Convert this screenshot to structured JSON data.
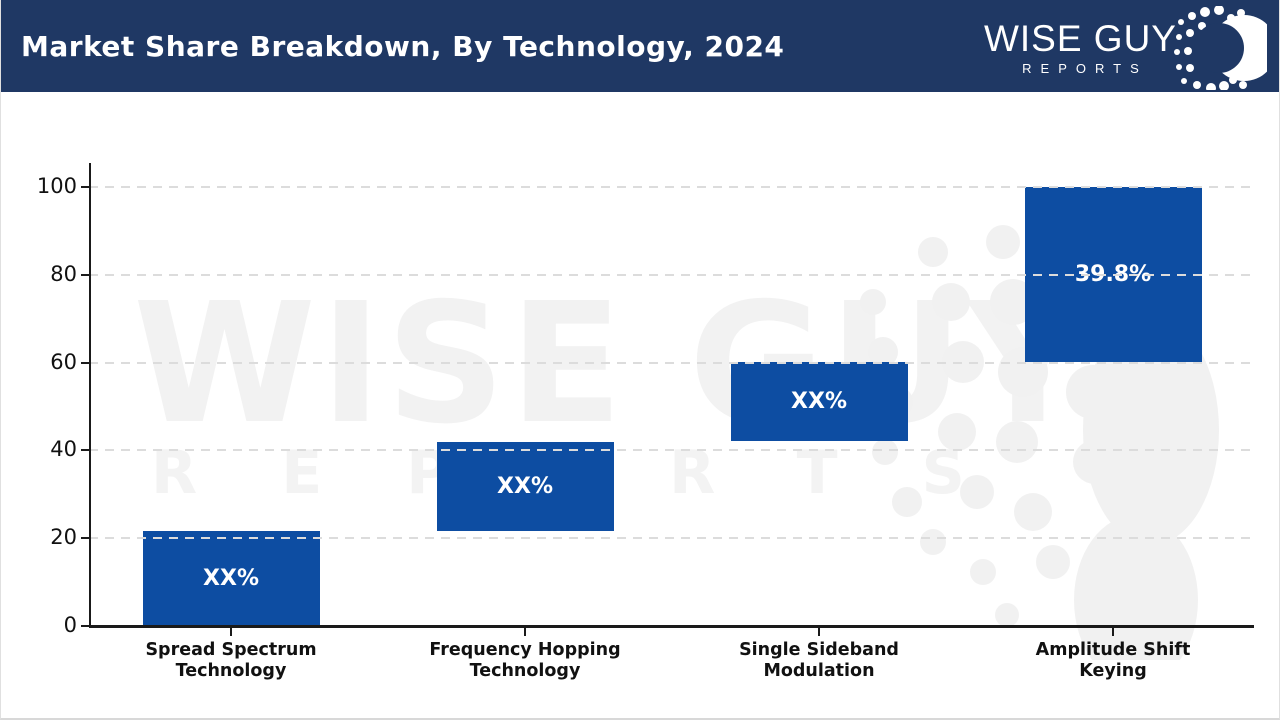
{
  "header": {
    "title": "Market Share Breakdown, By Technology, 2024",
    "bg_color": "#1f3864",
    "logo": {
      "line1": "WISE GUY",
      "line2": "REPORTS"
    }
  },
  "watermark": {
    "line1": "WISE GUY",
    "line2": "REPORTS"
  },
  "chart_data": {
    "type": "bar",
    "subtype": "waterfall-floating-bars",
    "title": "Market Share Breakdown, By Technology, 2024",
    "xlabel": "",
    "ylabel": "",
    "ylim": [
      0,
      100
    ],
    "yticks": [
      0,
      20,
      40,
      60,
      80,
      100
    ],
    "grid": "horizontal-dashed",
    "legend": "none",
    "bar_color": "#0d4da2",
    "bar_label_color": "#ffffff",
    "categories": [
      {
        "label_lines": [
          "Spread Spectrum",
          "Technology"
        ]
      },
      {
        "label_lines": [
          "Frequency Hopping",
          "Technology"
        ]
      },
      {
        "label_lines": [
          "Single Sideband",
          "Modulation"
        ]
      },
      {
        "label_lines": [
          "Amplitude Shift",
          "Keying"
        ]
      }
    ],
    "segments": [
      {
        "category": "Spread Spectrum Technology",
        "start": 0,
        "end": 21.6,
        "value": 21.6,
        "label": "XX%"
      },
      {
        "category": "Frequency Hopping Technology",
        "start": 21.6,
        "end": 41.9,
        "value": 20.3,
        "label": "XX%"
      },
      {
        "category": "Single Sideband Modulation",
        "start": 42.2,
        "end": 60.1,
        "value": 17.9,
        "label": "XX%"
      },
      {
        "category": "Amplitude Shift Keying",
        "start": 60.2,
        "end": 100,
        "value": 39.8,
        "label": "39.8%"
      }
    ]
  }
}
